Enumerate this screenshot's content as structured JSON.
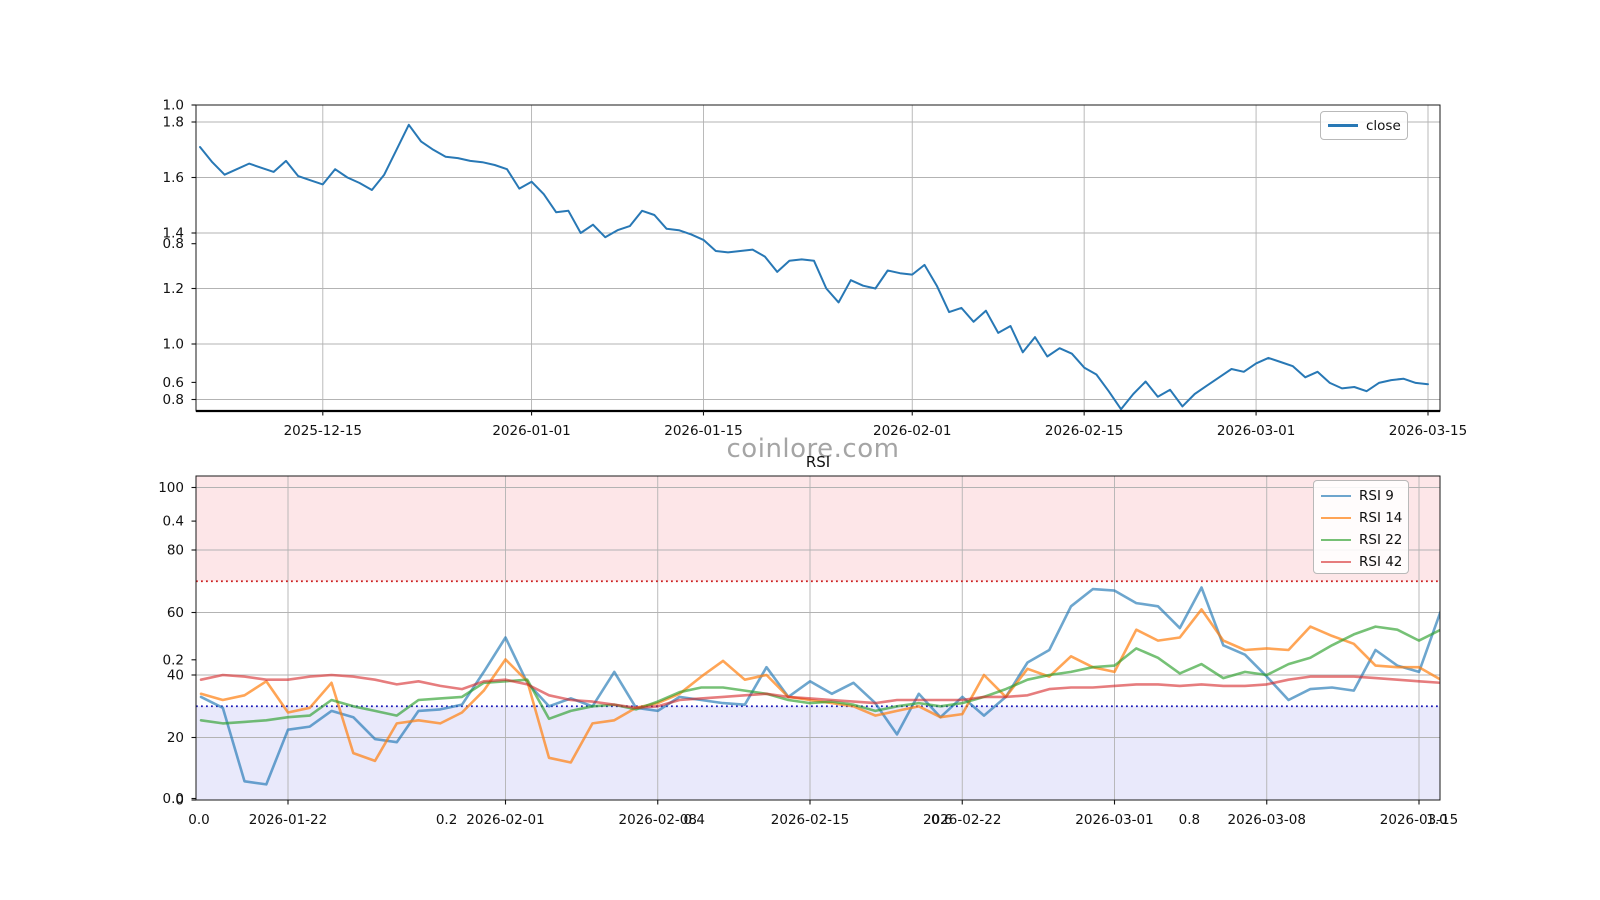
{
  "watermark": "coinlore.com",
  "overlay_axis": {
    "left_ticks": [
      "1.0",
      "0.8",
      "0.6",
      "0.4",
      "0.2",
      "0.0"
    ],
    "bottom_ticks": [
      "0.0",
      "0.2",
      "0.4",
      "0.6",
      "0.8",
      "1.0"
    ]
  },
  "chart_data": [
    {
      "type": "line",
      "title": "",
      "legend_position": "upper right",
      "grid": true,
      "ylim": [
        0.755,
        1.861
      ],
      "yticks": [
        {
          "v": 1.8,
          "label": "1.8"
        },
        {
          "v": 1.6,
          "label": "1.6"
        },
        {
          "v": 1.4,
          "label": "1.4"
        },
        {
          "v": 1.2,
          "label": "1.2"
        },
        {
          "v": 1.0,
          "label": "1.0"
        },
        {
          "v": 0.8,
          "label": "0.8"
        }
      ],
      "xticks": [
        {
          "label": "2025-12-15",
          "i": 10
        },
        {
          "label": "2026-01-01",
          "i": 27
        },
        {
          "label": "2026-01-15",
          "i": 41
        },
        {
          "label": "2026-02-01",
          "i": 58
        },
        {
          "label": "2026-02-15",
          "i": 72
        },
        {
          "label": "2026-03-01",
          "i": 86
        },
        {
          "label": "2026-03-15",
          "i": 100
        }
      ],
      "x_start_date": "2025-12-05",
      "series": [
        {
          "name": "close",
          "color": "#2878b5",
          "opacity": 1,
          "values": [
            1.71,
            1.655,
            1.61,
            1.63,
            1.65,
            1.635,
            1.62,
            1.66,
            1.605,
            1.59,
            1.575,
            1.63,
            1.6,
            1.58,
            1.555,
            1.61,
            1.7,
            1.79,
            1.73,
            1.7,
            1.675,
            1.67,
            1.66,
            1.655,
            1.645,
            1.63,
            1.56,
            1.585,
            1.54,
            1.475,
            1.48,
            1.4,
            1.43,
            1.385,
            1.41,
            1.425,
            1.48,
            1.465,
            1.415,
            1.41,
            1.395,
            1.375,
            1.335,
            1.33,
            1.335,
            1.34,
            1.315,
            1.26,
            1.3,
            1.305,
            1.3,
            1.2,
            1.15,
            1.23,
            1.21,
            1.2,
            1.265,
            1.255,
            1.25,
            1.285,
            1.21,
            1.115,
            1.13,
            1.08,
            1.12,
            1.04,
            1.065,
            0.97,
            1.025,
            0.955,
            0.985,
            0.965,
            0.915,
            0.89,
            0.83,
            0.765,
            0.82,
            0.865,
            0.81,
            0.835,
            0.775,
            0.82,
            0.85,
            0.88,
            0.91,
            0.9,
            0.93,
            0.95,
            0.935,
            0.92,
            0.88,
            0.9,
            0.86,
            0.84,
            0.845,
            0.83,
            0.86,
            0.87,
            0.875,
            0.86,
            0.855
          ]
        }
      ]
    },
    {
      "type": "line",
      "title": "RSI",
      "legend_position": "upper right",
      "grid": true,
      "ylim": [
        0,
        103.7
      ],
      "yticks": [
        {
          "v": 100,
          "label": "100"
        },
        {
          "v": 80,
          "label": "80"
        },
        {
          "v": 60,
          "label": "60"
        },
        {
          "v": 40,
          "label": "40"
        },
        {
          "v": 20,
          "label": "20"
        },
        {
          "v": 0,
          "label": "0"
        }
      ],
      "xticks": [
        {
          "label": "2026-01-22",
          "i": 4
        },
        {
          "label": "2026-02-01",
          "i": 14
        },
        {
          "label": "2026-02-08",
          "i": 21
        },
        {
          "label": "2026-02-15",
          "i": 28
        },
        {
          "label": "2026-02-22",
          "i": 35
        },
        {
          "label": "2026-03-01",
          "i": 42
        },
        {
          "label": "2026-03-08",
          "i": 49
        },
        {
          "label": "2026-03-15",
          "i": 56
        }
      ],
      "x_start_date": "2026-01-18",
      "bands": [
        {
          "label": "overbought",
          "from": 70,
          "to": 103.7,
          "color": "rgba(242,90,100,0.15)"
        },
        {
          "label": "oversold",
          "from": 0,
          "to": 30,
          "color": "rgba(88,88,225,0.13)"
        }
      ],
      "hlines": [
        {
          "y": 70,
          "style": "dotted",
          "color": "#cc1f1f"
        },
        {
          "y": 30,
          "style": "dotted",
          "color": "#1b1bb8"
        }
      ],
      "series": [
        {
          "name": "RSI 9",
          "color": "#1f77b4",
          "opacity": 0.65,
          "values": [
            33,
            29.5,
            6,
            5,
            22.5,
            23.5,
            28.5,
            26.5,
            19.5,
            18.5,
            28.5,
            29,
            30.5,
            41,
            52,
            37.5,
            30,
            32.5,
            30,
            41,
            29.5,
            28.5,
            33,
            32,
            31,
            30.5,
            42.5,
            33,
            38,
            34,
            37.5,
            31,
            21,
            34,
            26.5,
            33,
            27,
            33,
            44,
            48,
            62,
            67.5,
            67,
            63,
            62,
            55,
            68,
            49.5,
            46.5,
            39.5,
            32,
            35.5,
            36,
            35,
            48,
            43,
            41,
            60.5
          ]
        },
        {
          "name": "RSI 14",
          "color": "#ff7f0e",
          "opacity": 0.7,
          "values": [
            34,
            32,
            33.5,
            38,
            28,
            29.5,
            37.5,
            15,
            12.5,
            24.5,
            25.5,
            24.5,
            28,
            35,
            45,
            38,
            13.5,
            12,
            24.5,
            25.5,
            29.5,
            31,
            34,
            39.5,
            44.5,
            38.5,
            40,
            33,
            32,
            31,
            30,
            27,
            28.5,
            30,
            26.5,
            27.5,
            40,
            33,
            42,
            39.5,
            46,
            42.5,
            41,
            54.5,
            51,
            52,
            61,
            51,
            48,
            48.5,
            48,
            55.5,
            52.5,
            50,
            43,
            42.5,
            42.5,
            38.5
          ]
        },
        {
          "name": "RSI 22",
          "color": "#2ca02c",
          "opacity": 0.65,
          "values": [
            25.5,
            24.5,
            25,
            25.5,
            26.5,
            27,
            32,
            30,
            28.5,
            27,
            32,
            32.5,
            33,
            37.5,
            38,
            38.5,
            26,
            28.5,
            30,
            30.5,
            29,
            31.5,
            34.5,
            36,
            36,
            35,
            34,
            32,
            31,
            31.5,
            30.5,
            28.5,
            30,
            31,
            30,
            31,
            33,
            35.5,
            38.5,
            40,
            41,
            42.5,
            43,
            48.5,
            45.5,
            40.5,
            43.5,
            39,
            41,
            40,
            43.5,
            45.5,
            49.5,
            53,
            55.5,
            54.5,
            51,
            54.5
          ]
        },
        {
          "name": "RSI 42",
          "color": "#d62728",
          "opacity": 0.6,
          "values": [
            38.5,
            40,
            39.5,
            38.5,
            38.5,
            39.5,
            40,
            39.5,
            38.5,
            37,
            38,
            36.5,
            35.5,
            38,
            38.5,
            37,
            33.5,
            32,
            31.5,
            30.5,
            29.5,
            30,
            32,
            32.5,
            33,
            33.5,
            34,
            33,
            32.5,
            32,
            31.5,
            31,
            32,
            32,
            32,
            32,
            33,
            33,
            33.5,
            35.5,
            36,
            36,
            36.5,
            37,
            37,
            36.5,
            37,
            36.5,
            36.5,
            37,
            38.5,
            39.5,
            39.5,
            39.5,
            39,
            38.5,
            38,
            37.5
          ]
        }
      ]
    }
  ]
}
